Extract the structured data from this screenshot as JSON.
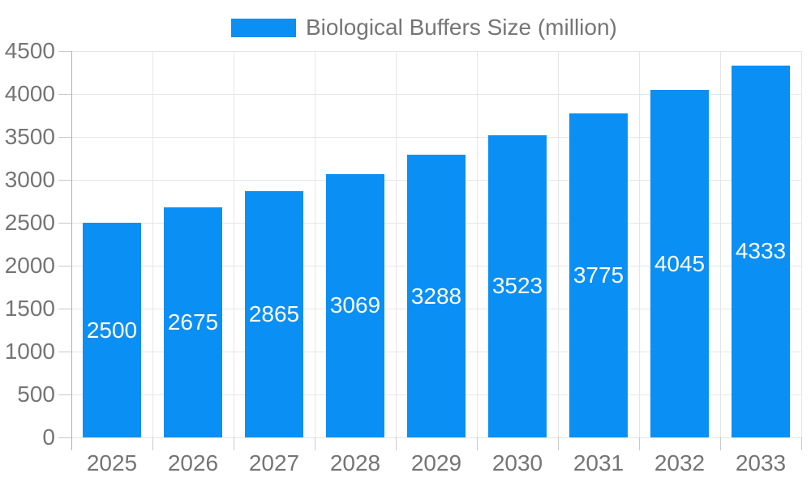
{
  "legend": {
    "label": "Biological Buffers Size (million)"
  },
  "colors": {
    "bar": "#0a8ff5",
    "axis_text": "#757575",
    "grid": "#e6e6e6",
    "axis_line": "#b3b3b3",
    "tick": "#c9c9c9",
    "value_label": "#ffffff",
    "background": "#ffffff"
  },
  "chart_data": {
    "type": "bar",
    "title": "",
    "xlabel": "",
    "ylabel": "",
    "categories": [
      "2025",
      "2026",
      "2027",
      "2028",
      "2029",
      "2030",
      "2031",
      "2032",
      "2033"
    ],
    "series": [
      {
        "name": "Biological Buffers Size (million)",
        "color": "#0a8ff5",
        "values": [
          2500,
          2675,
          2865,
          3069,
          3288,
          3523,
          3775,
          4045,
          4333
        ]
      }
    ],
    "value_labels": [
      "2500",
      "2675",
      "2865",
      "3069",
      "3288",
      "3523",
      "3775",
      "4045",
      "4333"
    ],
    "value_labels_shown": true,
    "value_label_position": "inside-middle",
    "ylim": [
      0,
      4500
    ],
    "yticks": [
      0,
      500,
      1000,
      1500,
      2000,
      2500,
      3000,
      3500,
      4000,
      4500
    ],
    "ytick_labels": [
      "0",
      "500",
      "1000",
      "1500",
      "2000",
      "2500",
      "3000",
      "3500",
      "4000",
      "4500"
    ],
    "grid": true,
    "legend_position": "top-center",
    "legend_entries": [
      "Biological Buffers Size (million)"
    ]
  }
}
